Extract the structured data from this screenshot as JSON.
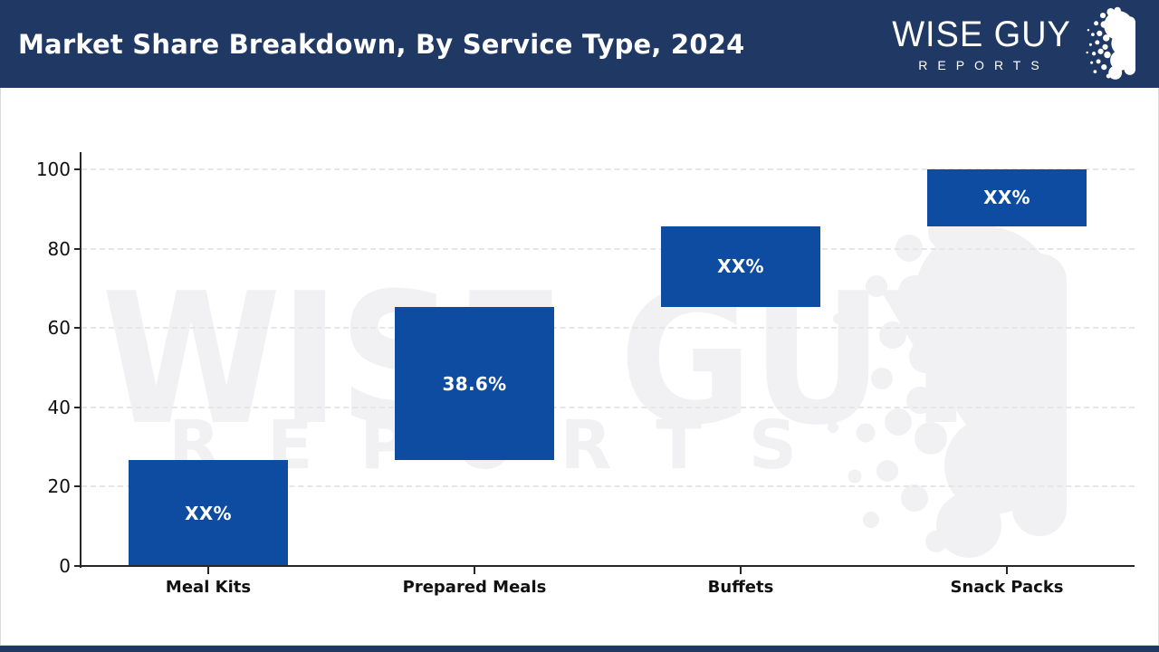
{
  "header": {
    "title": "Market Share Breakdown, By Service Type, 2024",
    "bg_color": "#1f3864",
    "logo": {
      "line1": "WISE GUY",
      "line2": "REPORTS"
    }
  },
  "watermark": {
    "line1": "WISE GUY",
    "line2": "REPORTS"
  },
  "footer": {
    "bg_color": "#1f3864"
  },
  "chart_data": {
    "type": "bar",
    "subtype": "waterfall",
    "title": "Market Share Breakdown, By Service Type, 2024",
    "categories": [
      "Meal Kits",
      "Prepared Meals",
      "Buffets",
      "Snack Packs"
    ],
    "segments": [
      {
        "category": "Meal Kits",
        "start": 0,
        "end": 26.7,
        "span": 26.7,
        "label": "XX%"
      },
      {
        "category": "Prepared Meals",
        "start": 26.7,
        "end": 65.3,
        "span": 38.6,
        "label": "38.6%"
      },
      {
        "category": "Buffets",
        "start": 65.3,
        "end": 85.7,
        "span": 20.4,
        "label": "XX%"
      },
      {
        "category": "Snack Packs",
        "start": 85.7,
        "end": 100,
        "span": 14.3,
        "label": "XX%"
      }
    ],
    "yticks": [
      0,
      20,
      40,
      60,
      80,
      100
    ],
    "ytick_labels": [
      "0",
      "20",
      "40",
      "60",
      "80",
      "100"
    ],
    "ylim": [
      0,
      105
    ],
    "xlabel": "",
    "ylabel": "",
    "bar_color": "#0d4ca0",
    "grid": "horizontal dashed",
    "legend": "none"
  }
}
